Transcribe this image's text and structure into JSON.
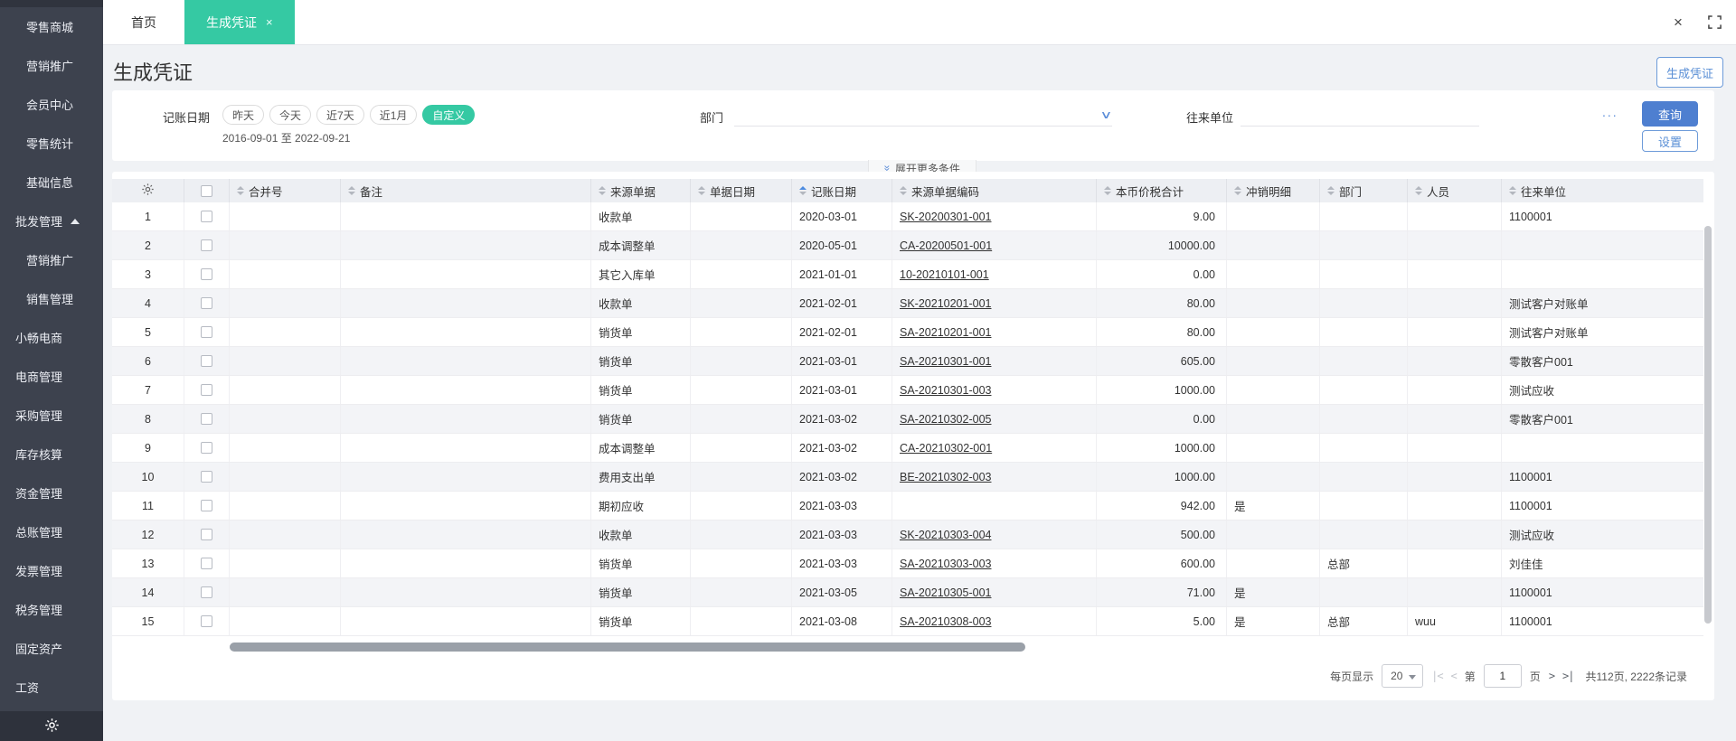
{
  "sidebar": {
    "items": [
      {
        "label": "零售商城",
        "indent": 1
      },
      {
        "label": "营销推广",
        "indent": 1
      },
      {
        "label": "会员中心",
        "indent": 1
      },
      {
        "label": "零售统计",
        "indent": 1
      },
      {
        "label": "基础信息",
        "indent": 1
      },
      {
        "label": "批发管理",
        "indent": 0,
        "expanded": true
      },
      {
        "label": "营销推广",
        "indent": 1
      },
      {
        "label": "销售管理",
        "indent": 1
      },
      {
        "label": "小畅电商",
        "indent": 0
      },
      {
        "label": "电商管理",
        "indent": 0
      },
      {
        "label": "采购管理",
        "indent": 0
      },
      {
        "label": "库存核算",
        "indent": 0
      },
      {
        "label": "资金管理",
        "indent": 0
      },
      {
        "label": "总账管理",
        "indent": 0
      },
      {
        "label": "发票管理",
        "indent": 0
      },
      {
        "label": "税务管理",
        "indent": 0
      },
      {
        "label": "固定资产",
        "indent": 0
      },
      {
        "label": "工资",
        "indent": 0
      }
    ],
    "footer_icon": "gear-icon"
  },
  "topbar": {
    "tabs": [
      {
        "label": "首页",
        "active": false,
        "closable": false
      },
      {
        "label": "生成凭证",
        "active": true,
        "closable": true
      }
    ],
    "close_icon": "×",
    "fullscreen_icon": "fullscreen-icon"
  },
  "page": {
    "title": "生成凭证",
    "primary_action": "生成凭证"
  },
  "filters": {
    "date_label": "记账日期",
    "date_presets": [
      "昨天",
      "今天",
      "近7天",
      "近1月"
    ],
    "date_custom": "自定义",
    "date_range": "2016-09-01 至 2022-09-21",
    "department_label": "部门",
    "partner_label": "往来单位",
    "ellipsis": "...",
    "search_label": "查询",
    "settings_label": "设置",
    "more_label": "展开更多条件",
    "accent_green": "#35c9a3",
    "accent_blue": "#4e7fd0"
  },
  "table": {
    "columns": [
      {
        "type": "gear",
        "label": ""
      },
      {
        "type": "checkbox",
        "label": ""
      },
      {
        "label": "合并号",
        "sortable": true
      },
      {
        "label": "备注",
        "sortable": true
      },
      {
        "label": "来源单据",
        "sortable": true
      },
      {
        "label": "单据日期",
        "sortable": true
      },
      {
        "label": "记账日期",
        "sortable": true,
        "sorted": "asc"
      },
      {
        "label": "来源单据编码",
        "sortable": true
      },
      {
        "label": "本币价税合计",
        "sortable": true,
        "align": "right"
      },
      {
        "label": "冲销明细",
        "sortable": true
      },
      {
        "label": "部门",
        "sortable": true
      },
      {
        "label": "人员",
        "sortable": true
      },
      {
        "label": "往来单位",
        "sortable": true
      }
    ],
    "rows": [
      {
        "num": "1",
        "merge": "",
        "note": "",
        "source": "收款单",
        "doc_date": "",
        "book_date": "2020-03-01",
        "code": "SK-20200301-001",
        "amount": "9.00",
        "writeoff": "",
        "dept": "",
        "person": "",
        "partner": "1100001"
      },
      {
        "num": "2",
        "merge": "",
        "note": "",
        "source": "成本调整单",
        "doc_date": "",
        "book_date": "2020-05-01",
        "code": "CA-20200501-001",
        "amount": "10000.00",
        "writeoff": "",
        "dept": "",
        "person": "",
        "partner": ""
      },
      {
        "num": "3",
        "merge": "",
        "note": "",
        "source": "其它入库单",
        "doc_date": "",
        "book_date": "2021-01-01",
        "code": "10-20210101-001",
        "amount": "0.00",
        "writeoff": "",
        "dept": "",
        "person": "",
        "partner": ""
      },
      {
        "num": "4",
        "merge": "",
        "note": "",
        "source": "收款单",
        "doc_date": "",
        "book_date": "2021-02-01",
        "code": "SK-20210201-001",
        "amount": "80.00",
        "writeoff": "",
        "dept": "",
        "person": "",
        "partner": "测试客户对账单"
      },
      {
        "num": "5",
        "merge": "",
        "note": "",
        "source": "销货单",
        "doc_date": "",
        "book_date": "2021-02-01",
        "code": "SA-20210201-001",
        "amount": "80.00",
        "writeoff": "",
        "dept": "",
        "person": "",
        "partner": "测试客户对账单"
      },
      {
        "num": "6",
        "merge": "",
        "note": "",
        "source": "销货单",
        "doc_date": "",
        "book_date": "2021-03-01",
        "code": "SA-20210301-001",
        "amount": "605.00",
        "writeoff": "",
        "dept": "",
        "person": "",
        "partner": "零散客户001"
      },
      {
        "num": "7",
        "merge": "",
        "note": "",
        "source": "销货单",
        "doc_date": "",
        "book_date": "2021-03-01",
        "code": "SA-20210301-003",
        "amount": "1000.00",
        "writeoff": "",
        "dept": "",
        "person": "",
        "partner": "测试应收"
      },
      {
        "num": "8",
        "merge": "",
        "note": "",
        "source": "销货单",
        "doc_date": "",
        "book_date": "2021-03-02",
        "code": "SA-20210302-005",
        "amount": "0.00",
        "writeoff": "",
        "dept": "",
        "person": "",
        "partner": "零散客户001"
      },
      {
        "num": "9",
        "merge": "",
        "note": "",
        "source": "成本调整单",
        "doc_date": "",
        "book_date": "2021-03-02",
        "code": "CA-20210302-001",
        "amount": "1000.00",
        "writeoff": "",
        "dept": "",
        "person": "",
        "partner": ""
      },
      {
        "num": "10",
        "merge": "",
        "note": "",
        "source": "费用支出单",
        "doc_date": "",
        "book_date": "2021-03-02",
        "code": "BE-20210302-003",
        "amount": "1000.00",
        "writeoff": "",
        "dept": "",
        "person": "",
        "partner": "1100001"
      },
      {
        "num": "11",
        "merge": "",
        "note": "",
        "source": "期初应收",
        "doc_date": "",
        "book_date": "2021-03-03",
        "code": "",
        "amount": "942.00",
        "writeoff": "是",
        "dept": "",
        "person": "",
        "partner": "1100001"
      },
      {
        "num": "12",
        "merge": "",
        "note": "",
        "source": "收款单",
        "doc_date": "",
        "book_date": "2021-03-03",
        "code": "SK-20210303-004",
        "amount": "500.00",
        "writeoff": "",
        "dept": "",
        "person": "",
        "partner": "测试应收"
      },
      {
        "num": "13",
        "merge": "",
        "note": "",
        "source": "销货单",
        "doc_date": "",
        "book_date": "2021-03-03",
        "code": "SA-20210303-003",
        "amount": "600.00",
        "writeoff": "",
        "dept": "总部",
        "person": "",
        "partner": "刘佳佳"
      },
      {
        "num": "14",
        "merge": "",
        "note": "",
        "source": "销货单",
        "doc_date": "",
        "book_date": "2021-03-05",
        "code": "SA-20210305-001",
        "amount": "71.00",
        "writeoff": "是",
        "dept": "",
        "person": "",
        "partner": "1100001"
      },
      {
        "num": "15",
        "merge": "",
        "note": "",
        "source": "销货单",
        "doc_date": "",
        "book_date": "2021-03-08",
        "code": "SA-20210308-003",
        "amount": "5.00",
        "writeoff": "是",
        "dept": "总部",
        "person": "wuu",
        "partner": "1100001"
      }
    ]
  },
  "pagination": {
    "per_page_label": "每页显示",
    "per_page": "20",
    "first_icon": "|<",
    "prev_icon": "<",
    "page_prefix": "第",
    "current_page": "1",
    "page_suffix": "页",
    "next_icon": ">",
    "last_icon": ">|",
    "total": "共112页, 2222条记录"
  }
}
